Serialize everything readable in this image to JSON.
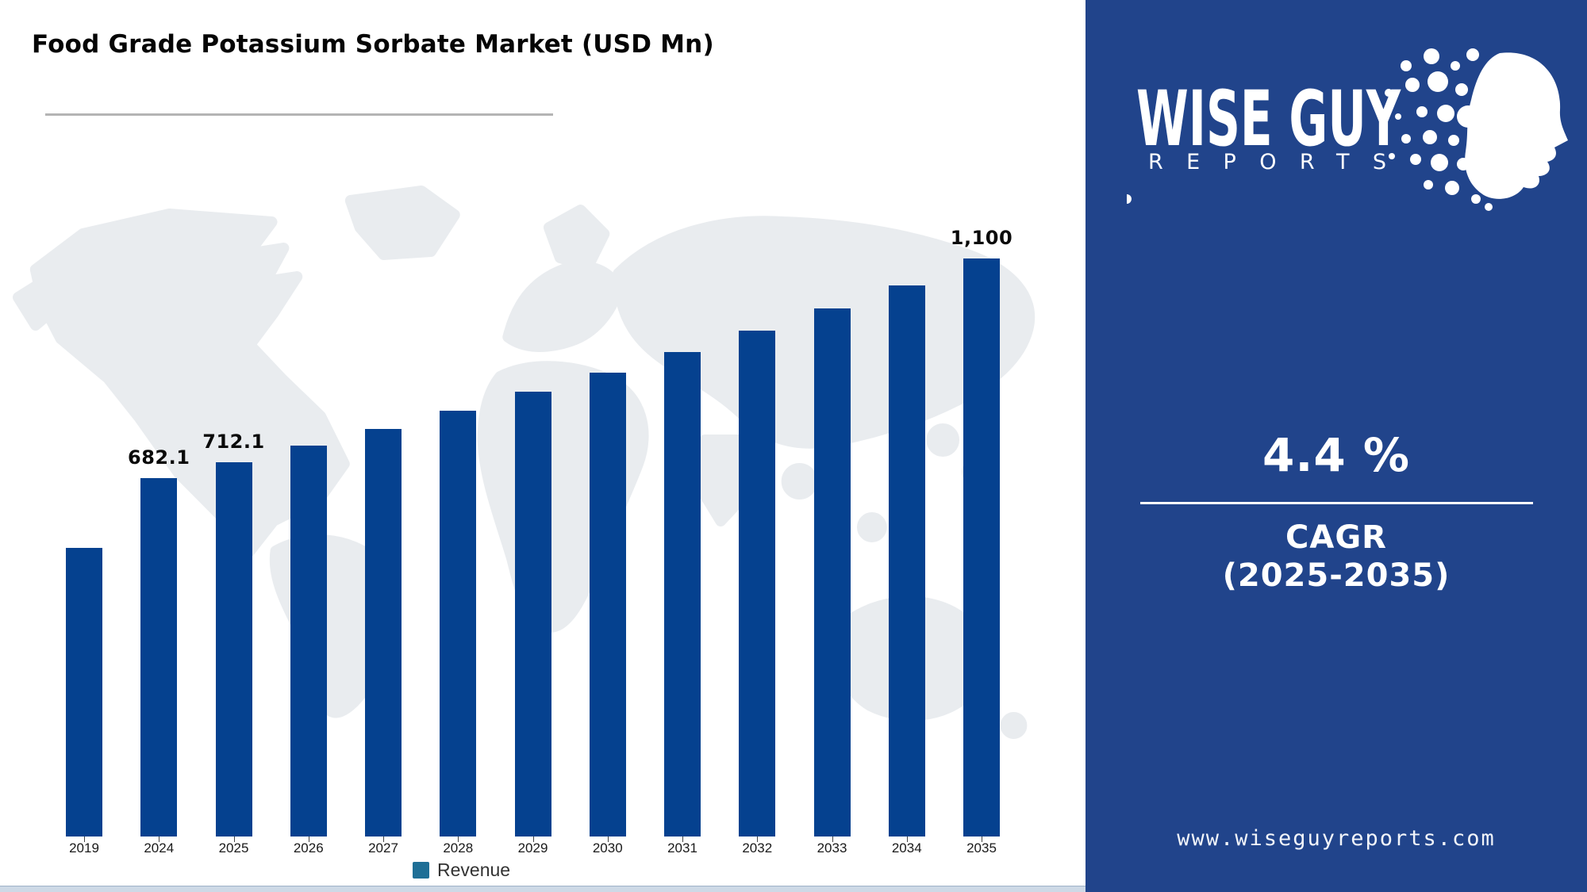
{
  "title": "Food Grade Potassium Sorbate Market (USD Mn)",
  "legend": {
    "label": "Revenue",
    "swatch_color": "#1f6f96"
  },
  "panel": {
    "bg_color": "#21448b",
    "logo_line1": "WISE GUY",
    "logo_line2": "REPORTS",
    "cagr_value": "4.4 %",
    "cagr_label": "CAGR",
    "cagr_period": "(2025-2035)",
    "website": "www.wiseguyreports.com"
  },
  "chart_data": {
    "type": "bar",
    "title": "Food Grade Potassium Sorbate Market (USD Mn)",
    "unit": "USD Mn",
    "categories": [
      "2019",
      "2024",
      "2025",
      "2026",
      "2027",
      "2028",
      "2029",
      "2030",
      "2031",
      "2032",
      "2033",
      "2034",
      "2035"
    ],
    "values": [
      550.0,
      682.1,
      712.1,
      743.4,
      776.1,
      810.3,
      845.9,
      883.1,
      922.0,
      962.5,
      1004.9,
      1049.1,
      1100
    ],
    "data_labels": [
      "",
      "682.1",
      "712.1",
      "",
      "",
      "",
      "",
      "",
      "",
      "",
      "",
      "",
      "1,100"
    ],
    "series_name": "Revenue",
    "bar_color": "#05418f",
    "xlabel": "",
    "ylabel": "",
    "ylim": [
      0,
      1160
    ],
    "grid": false,
    "y_axis_visible": false,
    "legend_position": "bottom"
  }
}
